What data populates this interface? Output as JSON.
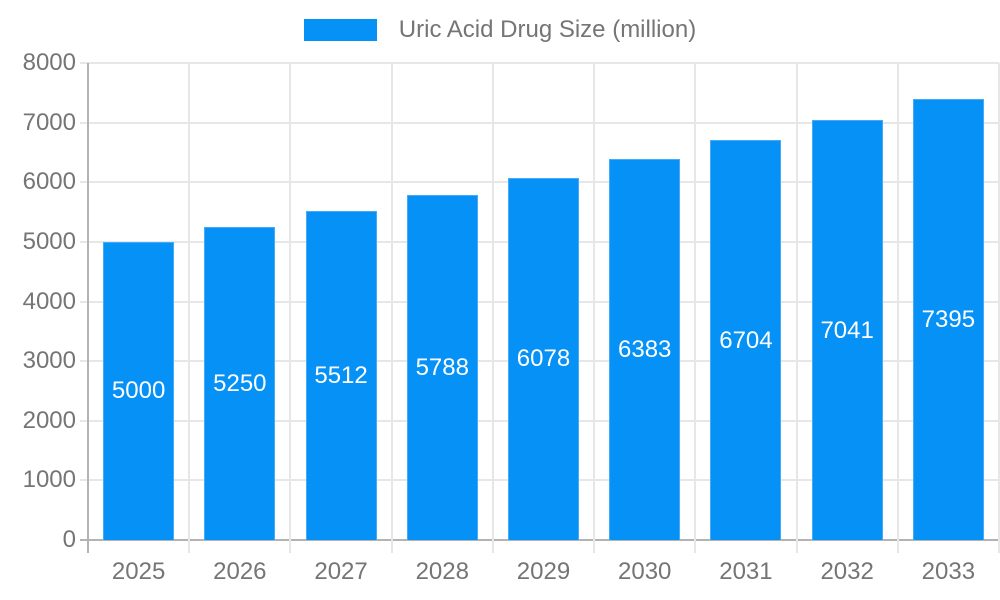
{
  "chart_data": {
    "type": "bar",
    "title": "Uric Acid Drug Size (million)",
    "categories": [
      "2025",
      "2026",
      "2027",
      "2028",
      "2029",
      "2030",
      "2031",
      "2032",
      "2033"
    ],
    "values": [
      5000,
      5250,
      5512,
      5788,
      6078,
      6383,
      6704,
      7041,
      7395
    ],
    "value_labels": [
      "5000",
      "5250",
      "5512",
      "5788",
      "6078",
      "6383",
      "6704",
      "7041",
      "7395"
    ],
    "xlabel": "",
    "ylabel": "",
    "ylim": [
      0,
      8000
    ],
    "ytick_step": 1000,
    "yticks": [
      "0",
      "1000",
      "2000",
      "3000",
      "4000",
      "5000",
      "6000",
      "7000",
      "8000"
    ],
    "legend_position": "top",
    "grid": true,
    "value_label_position": "bar-middle",
    "colors": {
      "bar": "#0591f5",
      "bar_border": "#47aaf7",
      "grid": "#e7e7e7",
      "axis": "#b3b3b3",
      "text": "#757575",
      "value_label": "#ffffff",
      "background": "#ffffff"
    }
  }
}
